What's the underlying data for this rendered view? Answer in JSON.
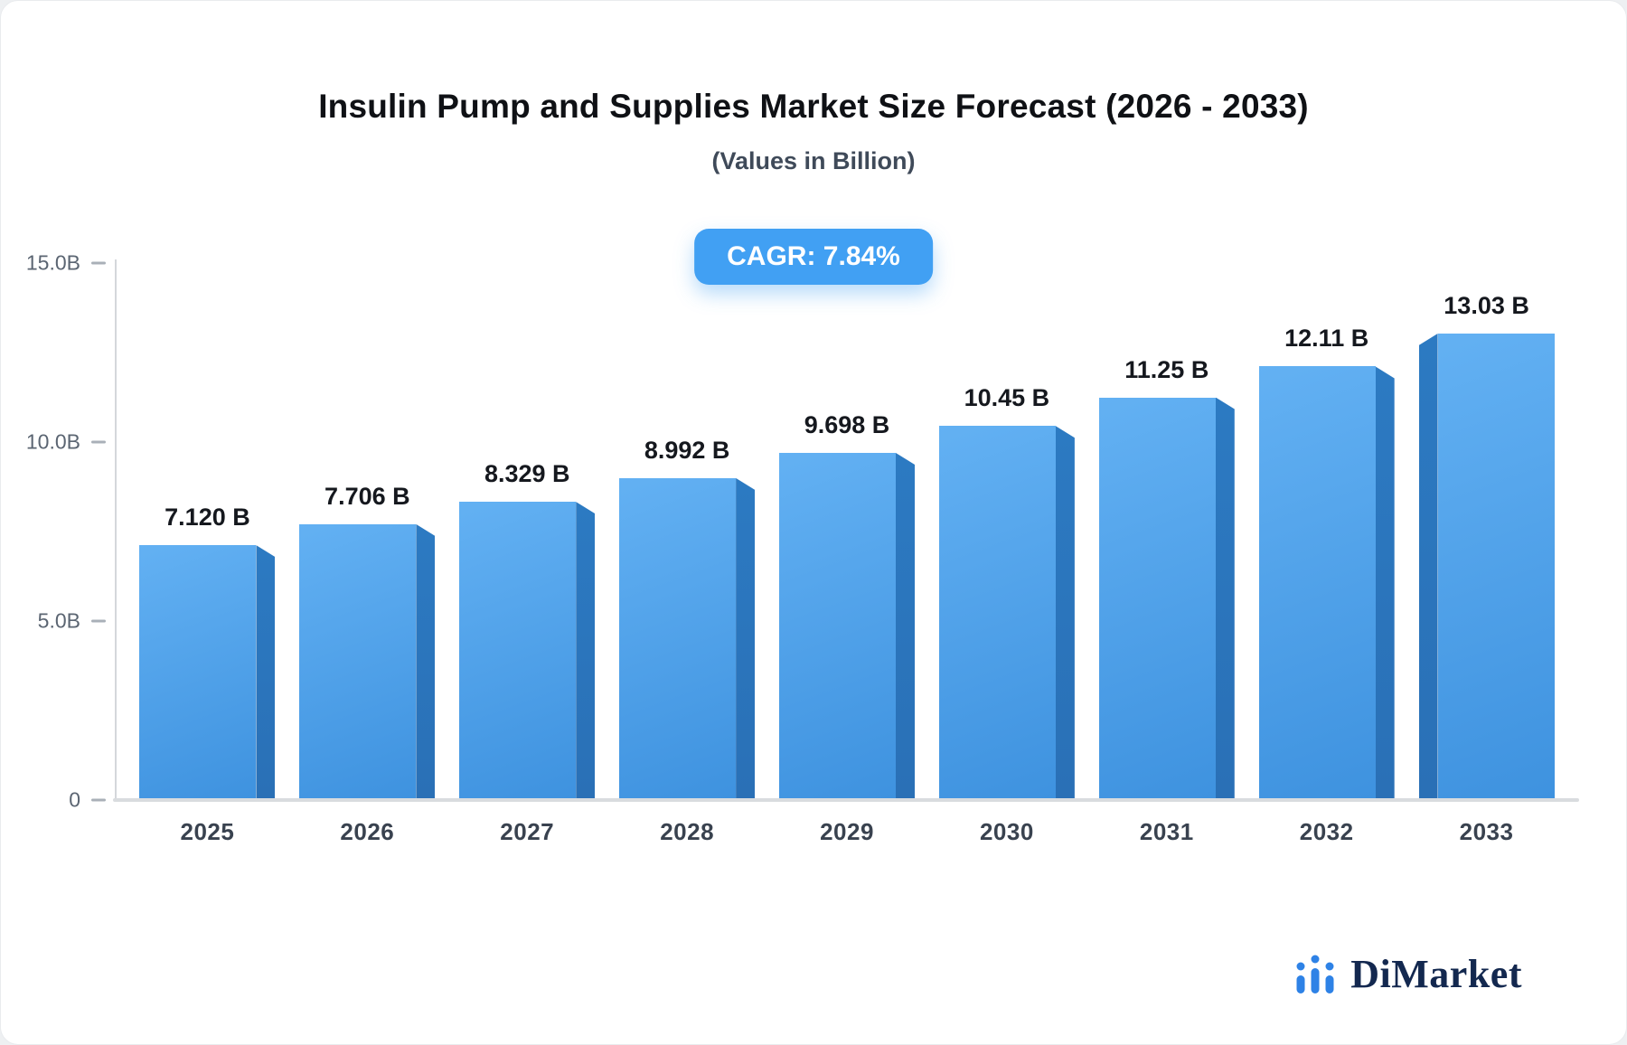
{
  "title": "Insulin Pump and Supplies Market Size Forecast (2026 - 2033)",
  "subtitle": "(Values in Billion)",
  "cagr_badge": "CAGR: 7.84%",
  "logo": {
    "name": "DiMarket"
  },
  "chart_data": {
    "type": "bar",
    "title": "Insulin Pump and Supplies Market Size Forecast (2026 - 2033)",
    "subtitle": "(Values in Billion)",
    "annotation": "CAGR: 7.84%",
    "categories": [
      "2025",
      "2026",
      "2027",
      "2028",
      "2029",
      "2030",
      "2031",
      "2032",
      "2033"
    ],
    "values": [
      7.12,
      7.706,
      8.329,
      8.992,
      9.698,
      10.45,
      11.25,
      12.11,
      13.03
    ],
    "value_labels": [
      "7.120 B",
      "7.706 B",
      "8.329 B",
      "8.992 B",
      "9.698 B",
      "10.45 B",
      "11.25 B",
      "12.11 B",
      "13.03 B"
    ],
    "xlabel": "",
    "ylabel": "",
    "ylim": [
      0,
      15
    ],
    "yticks": [
      {
        "label": "15.0B",
        "value": 15
      },
      {
        "label": "10.0B",
        "value": 10
      },
      {
        "label": "5.0B",
        "value": 5
      },
      {
        "label": "0",
        "value": 0
      }
    ],
    "grid": false,
    "legend": null,
    "colors": {
      "bar_top": "#63b1f3",
      "bar_bottom": "#3e92df",
      "bar_side": "#2c7ac2",
      "bar_side_dark": "#2a70b6",
      "badge": "#41a0f3",
      "logo_icon": "#2e82e6",
      "logo_text": "#13284f"
    }
  }
}
